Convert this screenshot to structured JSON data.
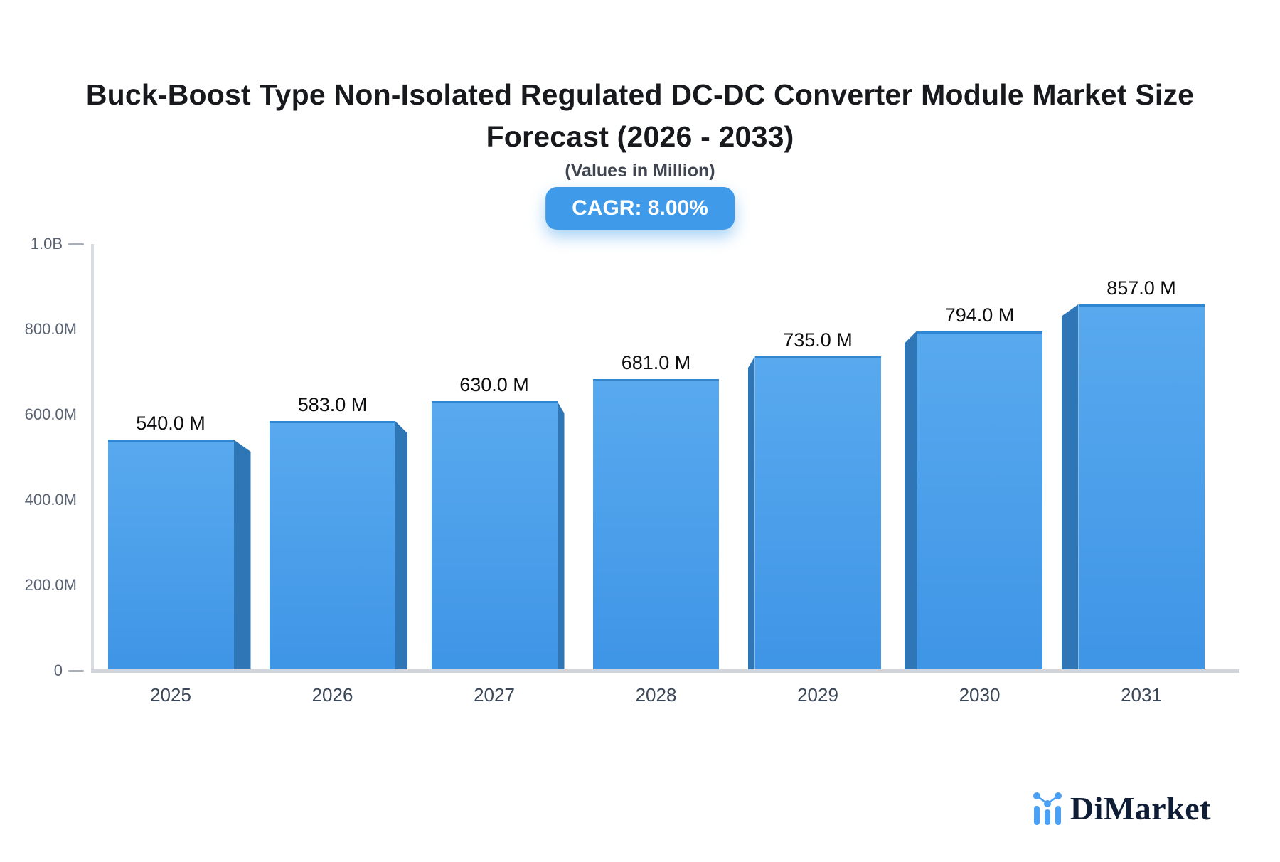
{
  "title": {
    "line1": "Buck-Boost Type Non-Isolated Regulated DC-DC Converter Module Market Size",
    "line2": "Forecast (2026 - 2033)"
  },
  "subtitle": "(Values in Million)",
  "badge": {
    "label": "CAGR: 8.00%",
    "bg_color": "#3f9bea",
    "text_color": "#ffffff"
  },
  "chart_data": {
    "type": "bar",
    "title": "Buck-Boost Type Non-Isolated Regulated DC-DC Converter Module Market Size Forecast (2026 - 2033)",
    "subtitle": "(Values in Million)",
    "categories": [
      "2025",
      "2026",
      "2027",
      "2028",
      "2029",
      "2030",
      "2031"
    ],
    "values": [
      540,
      583,
      630,
      681,
      735,
      794,
      857
    ],
    "value_labels": [
      "540.0 M",
      "583.0 M",
      "630.0 M",
      "681.0 M",
      "735.0 M",
      "794.0 M",
      "857.0 M"
    ],
    "unit": "Million",
    "xlabel": "",
    "ylabel": "",
    "ylim": [
      0,
      1000
    ],
    "yticks": [
      {
        "value": 0,
        "label": "0"
      },
      {
        "value": 200,
        "label": "200.0M"
      },
      {
        "value": 400,
        "label": "400.0M"
      },
      {
        "value": 600,
        "label": "600.0M"
      },
      {
        "value": 800,
        "label": "800.0M"
      },
      {
        "value": 1000,
        "label": "1.0B"
      }
    ],
    "grid": false,
    "legend_position": "none",
    "bar_face_color": "#459ce7",
    "bar_side_color": "#2e76b6"
  },
  "logo": {
    "text": "DiMarket",
    "icon": "mini-bar-chart-icon",
    "icon_color": "#4aa0f5",
    "text_color": "#0f1d36"
  }
}
